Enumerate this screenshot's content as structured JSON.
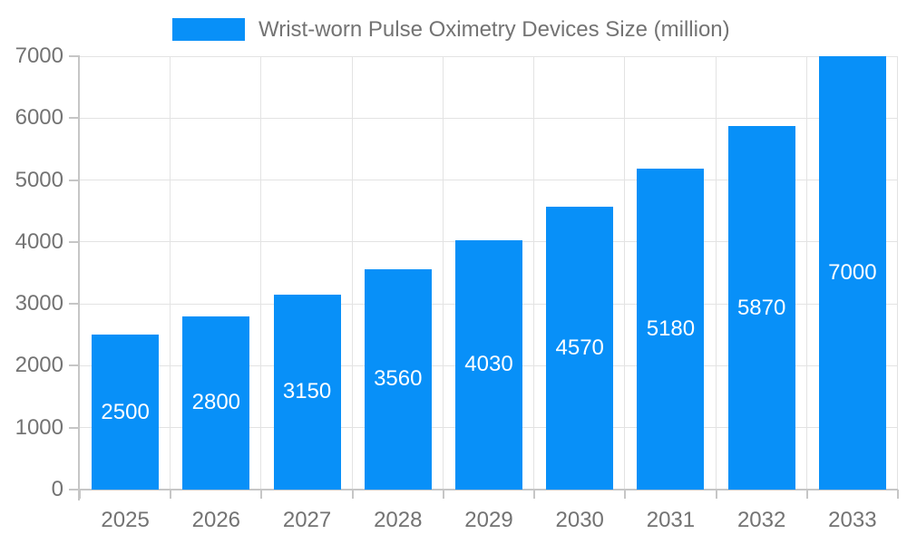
{
  "colors": {
    "bar": "#0890f8",
    "grid": "#e3e3e3",
    "axis": "#c6c6c6",
    "text": "#737373",
    "bar_label": "#ffffff",
    "background": "#ffffff"
  },
  "chart_data": {
    "type": "bar",
    "title": "Wrist-worn Pulse Oximetry Devices Size (million)",
    "categories": [
      "2025",
      "2026",
      "2027",
      "2028",
      "2029",
      "2030",
      "2031",
      "2032",
      "2033"
    ],
    "values": [
      2500,
      2800,
      3150,
      3560,
      4030,
      4570,
      5180,
      5870,
      7000
    ],
    "xlabel": "",
    "ylabel": "",
    "ylim": [
      0,
      7000
    ],
    "ytick_step": 1000,
    "grid": true,
    "legend_position": "top",
    "value_labels": "inside-center"
  }
}
